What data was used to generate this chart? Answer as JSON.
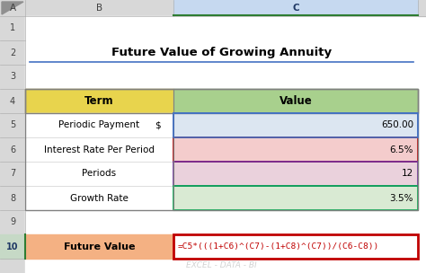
{
  "title": "Future Value of Growing Annuity",
  "col_headers": [
    "Term",
    "Value"
  ],
  "rows": [
    [
      "Periodic Payment",
      "$   650.00"
    ],
    [
      "Interest Rate Per Period",
      "6.5%"
    ],
    [
      "Periods",
      "12"
    ],
    [
      "Growth Rate",
      "3.5%"
    ]
  ],
  "footer_label": "Future Value",
  "footer_formula": "=C5*(((1+C6)^(C7)-(1+C8)^(C7))/(C6-C8))",
  "col_header_bg_term": "#e8d44d",
  "col_header_bg_value": "#a8d08d",
  "row5_bg": "#dce6f1",
  "row6_bg": "#f4cccc",
  "row7_bg": "#ead1dc",
  "row8_bg": "#d9ead3",
  "footer_label_bg": "#f4b183",
  "col_c_header_bg": "#c6d9f0",
  "border_color_row5": "#4472c4",
  "border_color_row6": "#c00000",
  "border_color_row7": "#7030a0",
  "border_color_row8": "#00b050",
  "formula_border_color": "#c00000",
  "text_color_formula": "#c00000",
  "watermark": "EXCEL - DATA - BI",
  "header_gray": "#d8d8d8",
  "col_c_selected_underline": "#2e7d32",
  "figw": 4.74,
  "figh": 3.04,
  "dpi": 100
}
